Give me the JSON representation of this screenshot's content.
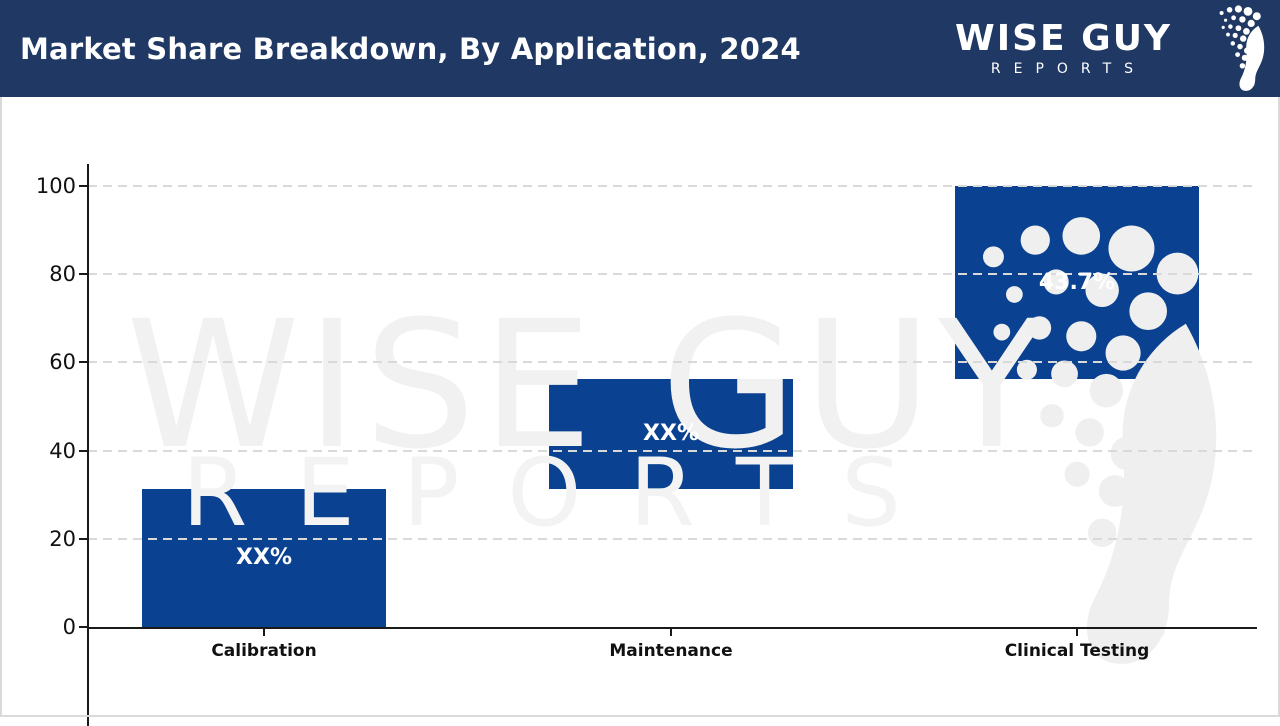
{
  "header": {
    "title": "Market Share Breakdown, By Application, 2024"
  },
  "logo": {
    "name_top": "WISE GUY",
    "name_bottom": "REPORTS"
  },
  "watermark": {
    "text_top": "WISE GUY",
    "text_bottom": "REPORTS"
  },
  "chart_data": {
    "type": "bar",
    "subtype": "waterfall",
    "title": "Market Share Breakdown, By Application, 2024",
    "categories": [
      "Calibration",
      "Maintenance",
      "Clinical Testing"
    ],
    "segments": [
      {
        "category": "Calibration",
        "start": 0,
        "end": 31.3,
        "label": "XX%"
      },
      {
        "category": "Maintenance",
        "start": 31.3,
        "end": 56.3,
        "label": "XX%"
      },
      {
        "category": "Clinical Testing",
        "start": 56.3,
        "end": 100,
        "label": "43.7%"
      }
    ],
    "yticks": [
      0,
      20,
      40,
      60,
      80,
      100
    ],
    "ylim": [
      0,
      105
    ],
    "xlabel": "",
    "ylabel": "",
    "grid": {
      "horizontal": true,
      "style": "dashed",
      "drawn_above_bars": true
    },
    "legend": null
  },
  "colors": {
    "header_bg": "#1f3864",
    "bar": "#0a4291",
    "bar_label": "#ffffff",
    "axis": "#1a1a1a",
    "grid": "#d9d9d9",
    "watermark": "#f1f1f1",
    "page_bg": "#ffffff",
    "frame_border": "#d9d9d9"
  }
}
